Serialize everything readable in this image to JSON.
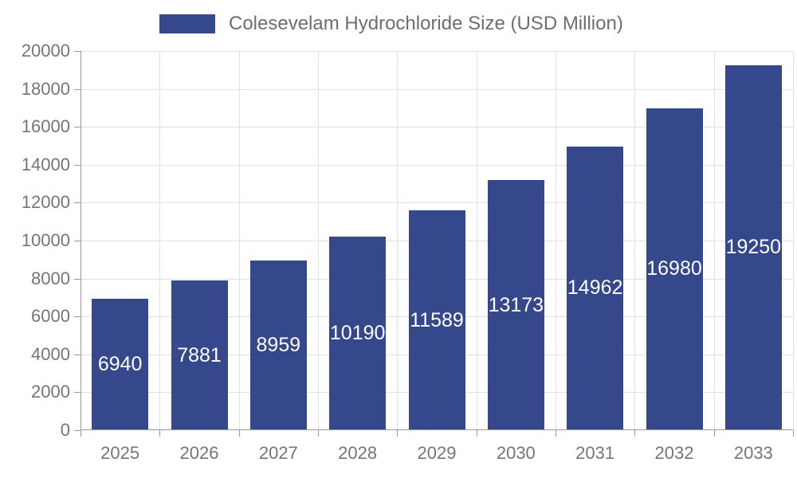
{
  "legend": {
    "label": "Colesevelam Hydrochloride Size (USD Million)"
  },
  "chart_data": {
    "type": "bar",
    "title": "Colesevelam Hydrochloride Size (USD Million)",
    "categories": [
      "2025",
      "2026",
      "2027",
      "2028",
      "2029",
      "2030",
      "2031",
      "2032",
      "2033"
    ],
    "values": [
      6940,
      7881,
      8959,
      10190,
      11589,
      13173,
      14962,
      16980,
      19250
    ],
    "xlabel": "",
    "ylabel": "",
    "ylim": [
      0,
      20000
    ],
    "yticks": [
      0,
      2000,
      4000,
      6000,
      8000,
      10000,
      12000,
      14000,
      16000,
      18000,
      20000
    ],
    "grid": "both",
    "legend_position": "top",
    "value_labels": "centered-inside-bars"
  },
  "colors": {
    "bar": "#35488c",
    "grid": "#e0e0e0",
    "axis": "#999999",
    "tick_text": "#757575",
    "legend_text": "#6e6e6e",
    "value_text": "#ffffff",
    "background": "#ffffff"
  }
}
